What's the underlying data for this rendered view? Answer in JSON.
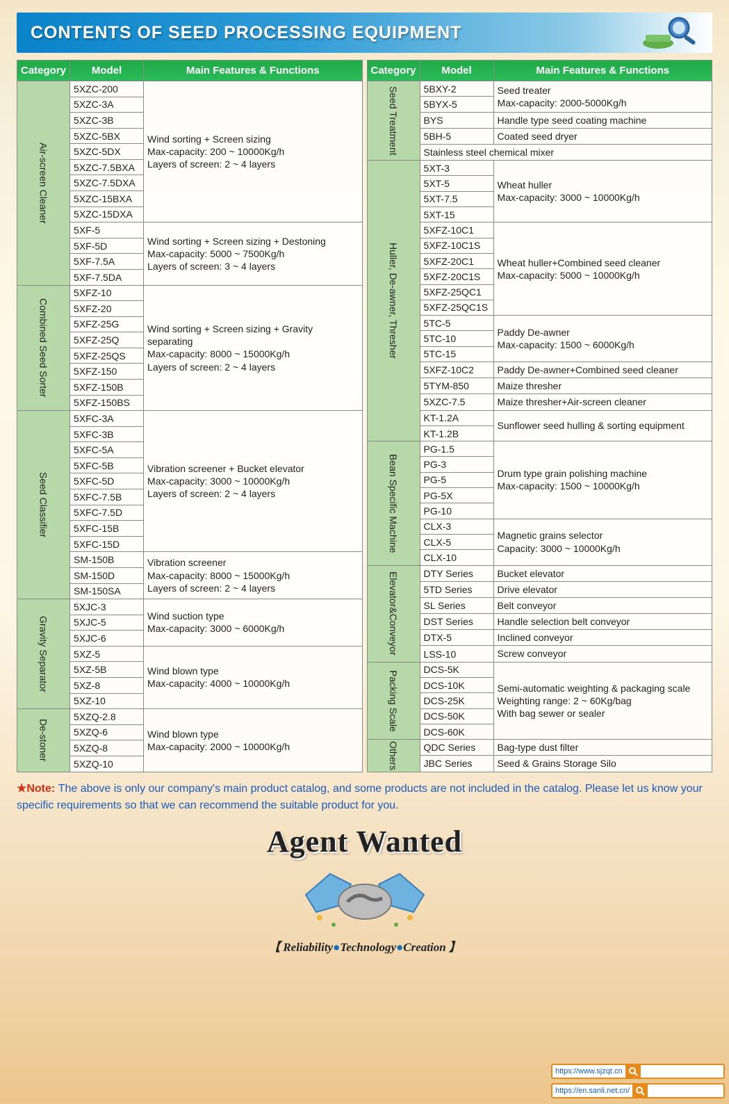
{
  "title": "CONTENTS OF SEED PROCESSING EQUIPMENT",
  "headers": {
    "cat": "Category",
    "model": "Model",
    "feat": "Main Features & Functions"
  },
  "left": [
    {
      "cat": "Air-screen Cleaner",
      "blocks": [
        {
          "models": [
            "5XZC-200",
            "5XZC-3A",
            "5XZC-3B",
            "5XZC-5BX",
            "5XZC-5DX",
            "5XZC-7.5BXA",
            "5XZC-7.5DXA",
            "5XZC-15BXA",
            "5XZC-15DXA"
          ],
          "feat": "Wind sorting + Screen sizing\nMax-capacity: 200 ~ 10000Kg/h\nLayers of screen: 2 ~ 4 layers"
        },
        {
          "models": [
            "5XF-5",
            "5XF-5D",
            "5XF-7.5A",
            "5XF-7.5DA"
          ],
          "feat": "Wind sorting + Screen sizing + Destoning\nMax-capacity: 5000 ~ 7500Kg/h\nLayers of screen: 3 ~ 4 layers"
        }
      ]
    },
    {
      "cat": "Combined Seed Sorter",
      "blocks": [
        {
          "models": [
            "5XFZ-10",
            "5XFZ-20",
            "5XFZ-25G",
            "5XFZ-25Q",
            "5XFZ-25QS",
            "5XFZ-150",
            "5XFZ-150B",
            "5XFZ-150BS"
          ],
          "feat": "Wind sorting + Screen sizing + Gravity separating\nMax-capacity: 8000 ~ 15000Kg/h\nLayers of screen: 2 ~ 4 layers"
        }
      ]
    },
    {
      "cat": "Seed Classifier",
      "blocks": [
        {
          "models": [
            "5XFC-3A",
            "5XFC-3B",
            "5XFC-5A",
            "5XFC-5B",
            "5XFC-5D",
            "5XFC-7.5B",
            "5XFC-7.5D",
            "5XFC-15B",
            "5XFC-15D"
          ],
          "feat": "Vibration screener + Bucket elevator\nMax-capacity: 3000 ~ 10000Kg/h\nLayers of screen: 2 ~ 4 layers"
        },
        {
          "models": [
            "SM-150B",
            "SM-150D",
            "SM-150SA"
          ],
          "feat": "Vibration screener\nMax-capacity: 8000 ~ 15000Kg/h\nLayers of screen: 2 ~ 4 layers"
        }
      ]
    },
    {
      "cat": "Gravity Separator",
      "blocks": [
        {
          "models": [
            "5XJC-3",
            "5XJC-5",
            "5XJC-6"
          ],
          "feat": "Wind suction type\nMax-capacity: 3000 ~ 6000Kg/h"
        },
        {
          "models": [
            "5XZ-5",
            "5XZ-5B",
            "5XZ-8",
            "5XZ-10"
          ],
          "feat": "Wind blown type\nMax-capacity: 4000 ~ 10000Kg/h"
        }
      ]
    },
    {
      "cat": "De-stoner",
      "blocks": [
        {
          "models": [
            "5XZQ-2.8",
            "5XZQ-6",
            "5XZQ-8",
            "5XZQ-10"
          ],
          "feat": "Wind blown type\nMax-capacity: 2000 ~ 10000Kg/h"
        }
      ]
    }
  ],
  "right": [
    {
      "cat": "Seed Treatment",
      "blocks": [
        {
          "models": [
            "5BXY-2",
            "5BYX-5"
          ],
          "feat": "Seed treater\nMax-capacity: 2000-5000Kg/h"
        },
        {
          "models": [
            "BYS"
          ],
          "feat": "Handle type seed coating machine"
        },
        {
          "models": [
            "5BH-5"
          ],
          "feat": "Coated seed dryer"
        },
        {
          "models": [],
          "feat": "Stainless steel chemical mixer",
          "span": true
        }
      ]
    },
    {
      "cat": "Huller, De-awner, Thresher",
      "blocks": [
        {
          "models": [
            "5XT-3",
            "5XT-5",
            "5XT-7.5",
            "5XT-15"
          ],
          "feat": "Wheat huller\nMax-capacity: 3000 ~ 10000Kg/h"
        },
        {
          "models": [
            "5XFZ-10C1",
            "5XFZ-10C1S",
            "5XFZ-20C1",
            "5XFZ-20C1S",
            "5XFZ-25QC1",
            "5XFZ-25QC1S"
          ],
          "feat": "Wheat huller+Combined seed cleaner\nMax-capacity: 5000 ~ 10000Kg/h"
        },
        {
          "models": [
            "5TC-5",
            "5TC-10",
            "5TC-15"
          ],
          "feat": "Paddy De-awner\nMax-capacity:  1500 ~ 6000Kg/h"
        },
        {
          "models": [
            "5XFZ-10C2"
          ],
          "feat": "Paddy De-awner+Combined seed cleaner"
        },
        {
          "models": [
            "5TYM-850"
          ],
          "feat": "Maize thresher"
        },
        {
          "models": [
            "5XZC-7.5"
          ],
          "feat": "Maize thresher+Air-screen cleaner"
        },
        {
          "models": [
            "KT-1.2A",
            "KT-1.2B"
          ],
          "feat": "Sunflower seed hulling & sorting equipment"
        }
      ]
    },
    {
      "cat": "Bean Specific Machine",
      "blocks": [
        {
          "models": [
            "PG-1.5",
            "PG-3",
            "PG-5",
            "PG-5X",
            "PG-10"
          ],
          "feat": "Drum type grain polishing machine\nMax-capacity: 1500 ~ 10000Kg/h"
        },
        {
          "models": [
            "CLX-3",
            "CLX-5",
            "CLX-10"
          ],
          "feat": "Magnetic grains selector\nCapacity: 3000 ~ 10000Kg/h"
        }
      ]
    },
    {
      "cat": "Elevator&Conveyor",
      "blocks": [
        {
          "models": [
            "DTY Series"
          ],
          "feat": "Bucket elevator"
        },
        {
          "models": [
            "5TD Series"
          ],
          "feat": "Drive elevator"
        },
        {
          "models": [
            "SL Series"
          ],
          "feat": "Belt conveyor"
        },
        {
          "models": [
            "DST Series"
          ],
          "feat": "Handle selection belt conveyor"
        },
        {
          "models": [
            "DTX-5"
          ],
          "feat": "Inclined conveyor"
        },
        {
          "models": [
            "LSS-10"
          ],
          "feat": "Screw conveyor"
        }
      ]
    },
    {
      "cat": "Packing Scale",
      "blocks": [
        {
          "models": [
            "DCS-5K",
            "DCS-10K",
            "DCS-25K",
            "DCS-50K",
            "DCS-60K"
          ],
          "feat": "Semi-automatic weighting & packaging scale\nWeighting range: 2 ~ 60Kg/bag\nWith bag sewer or sealer"
        }
      ]
    },
    {
      "cat": "Others",
      "blocks": [
        {
          "models": [
            "QDC Series"
          ],
          "feat": "Bag-type dust filter"
        },
        {
          "models": [
            "JBC Series"
          ],
          "feat": "Seed & Grains Storage Silo"
        }
      ]
    }
  ],
  "note_label": "★Note: ",
  "note_text": "The above is only our company's main product catalog, and some products are not included in the catalog. Please let us know your specific requirements so that we can recommend the suitable product for you.",
  "agent": "Agent Wanted",
  "tagline_words": [
    "Reliability",
    "Technology",
    "Creation"
  ],
  "tagline_brackets": [
    "【",
    "】"
  ],
  "sources": [
    "https://www.sjzqt.cn",
    "https://en.sanli.net.cn/"
  ],
  "colors": {
    "header_green": "#1faa47",
    "cat_bg": "#b7d8a8",
    "link": "#1a5bbd",
    "star": "#d62e10",
    "badge_border": "#e68a1e",
    "title_blue": "#0a83c9"
  }
}
